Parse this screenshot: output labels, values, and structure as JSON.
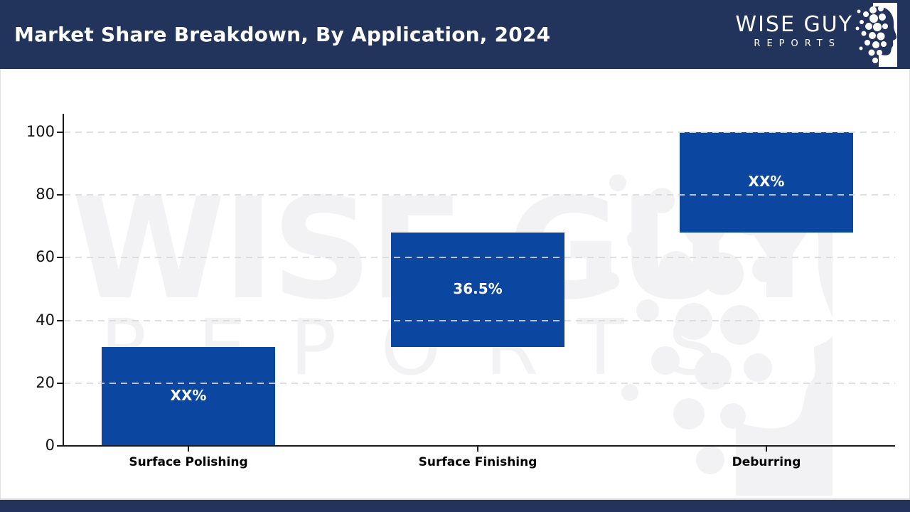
{
  "header": {
    "title": "Market Share Breakdown, By Application, 2024",
    "logo": {
      "line1": "WISE GUY",
      "line2": "REPORTS"
    }
  },
  "watermark": {
    "line1": "WISE GUY",
    "line2": "REPORTS"
  },
  "chart_data": {
    "type": "bar",
    "variant": "floating-segment (waterfall-style market share breakdown)",
    "title": "Market Share Breakdown, By Application, 2024",
    "categories": [
      "Surface Polishing",
      "Surface Finishing",
      "Deburring"
    ],
    "segments": [
      {
        "category": "Surface Polishing",
        "from": 0,
        "to": 31.5,
        "value": 31.5,
        "label": "XX%"
      },
      {
        "category": "Surface Finishing",
        "from": 31.5,
        "to": 68,
        "value": 36.5,
        "label": "36.5%"
      },
      {
        "category": "Deburring",
        "from": 68,
        "to": 100,
        "value": 32,
        "label": "XX%"
      }
    ],
    "xlabel": "",
    "ylabel": "",
    "ylim": [
      0,
      100
    ],
    "yticks": [
      0,
      20,
      40,
      60,
      80,
      100
    ],
    "grid": "horizontal dashed, drawn above bars",
    "legend": "none",
    "bar_color": "#0B46A1"
  },
  "colors": {
    "header_bg": "#23345C",
    "footer_bg": "#23345C",
    "bar": "#0B46A1",
    "gridline": "#D9D9D9",
    "axis": "#1A1A1A",
    "watermark": "#F2F2F4",
    "bar_label_text": "#FFFFFF"
  }
}
